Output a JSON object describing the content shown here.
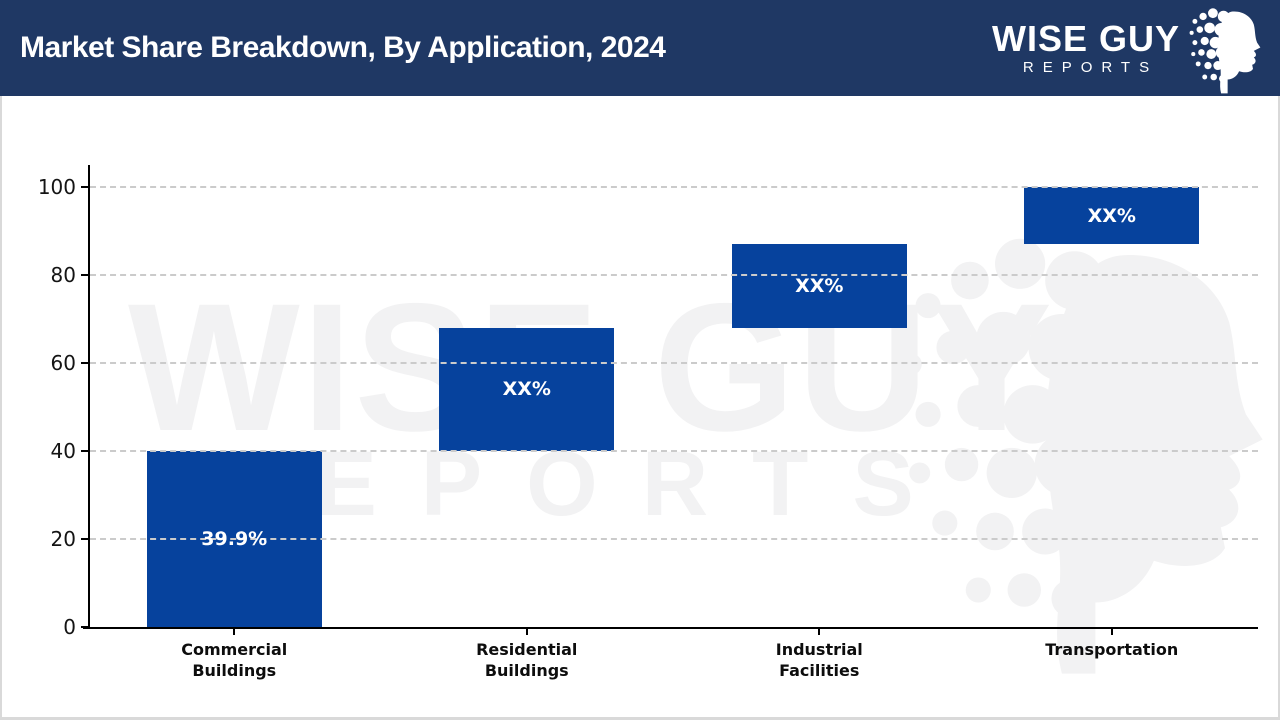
{
  "header": {
    "title": "Market Share Breakdown, By Application, 2024",
    "bg_color": "#1f3864",
    "text_color": "#ffffff",
    "logo": {
      "line1": "WISE GUY",
      "line2": "REPORTS"
    }
  },
  "watermark": {
    "line1": "WISE GUY",
    "line2": "REPORTS",
    "color": "#f2f2f3"
  },
  "chart_data": {
    "type": "bar",
    "subtype": "waterfall",
    "title": "Market Share Breakdown, By Application, 2024",
    "xlabel": "",
    "ylabel": "",
    "categories": [
      "Commercial Buildings",
      "Residential Buildings",
      "Industrial Facilities",
      "Transportation"
    ],
    "category_lines": [
      [
        "Commercial",
        "Buildings"
      ],
      [
        "Residential",
        "Buildings"
      ],
      [
        "Industrial",
        "Facilities"
      ],
      [
        "Transportation"
      ]
    ],
    "series": [
      {
        "name": "Market Share (%)",
        "segments": [
          {
            "category": "Commercial Buildings",
            "start": 0,
            "end": 40,
            "value_label": "39.9%"
          },
          {
            "category": "Residential Buildings",
            "start": 40,
            "end": 68,
            "value_label": "XX%"
          },
          {
            "category": "Industrial Facilities",
            "start": 68,
            "end": 87,
            "value_label": "XX%"
          },
          {
            "category": "Transportation",
            "start": 87,
            "end": 100,
            "value_label": "XX%"
          }
        ]
      }
    ],
    "yticks": [
      0,
      20,
      40,
      60,
      80,
      100
    ],
    "ylim": [
      0,
      105
    ],
    "grid": {
      "visible": true,
      "style": "dashed",
      "color": "#cbcbcb",
      "drawn_above_bars": true
    },
    "bar_color": "#06429d",
    "bar_label_color": "#ffffff",
    "axis_color": "#000000",
    "legend": null
  }
}
